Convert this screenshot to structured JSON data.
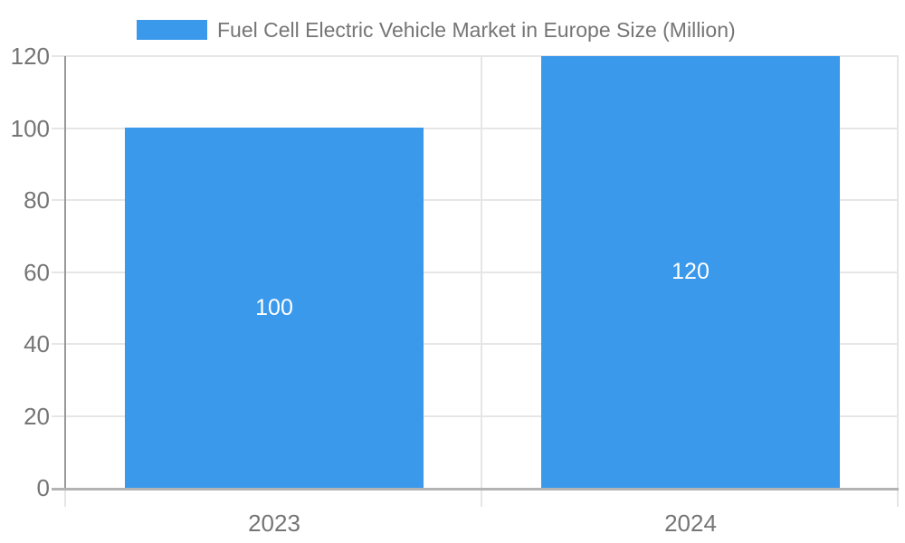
{
  "legend": {
    "title": "Fuel Cell Electric Vehicle Market in Europe Size (Million)"
  },
  "colors": {
    "bar": "#3b99ec",
    "text": "#757575",
    "grid": "#e6e6e6",
    "x_axis": "#b3b3b3",
    "y_axis": "#999999",
    "bar_label": "#ffffff",
    "background": "#ffffff"
  },
  "chart_data": {
    "type": "bar",
    "title": "Fuel Cell Electric Vehicle Market in Europe Size (Million)",
    "series": [
      {
        "name": "Fuel Cell Electric Vehicle Market in Europe Size (Million)",
        "values": [
          100,
          120
        ]
      }
    ],
    "categories": [
      "2023",
      "2024"
    ],
    "values": [
      100,
      120
    ],
    "data_labels": [
      "100",
      "120"
    ],
    "xlabel": "",
    "ylabel": "",
    "ylim": [
      0,
      120
    ],
    "yticks": [
      0,
      20,
      40,
      60,
      80,
      100,
      120
    ],
    "grid": true,
    "legend_position": "top"
  }
}
